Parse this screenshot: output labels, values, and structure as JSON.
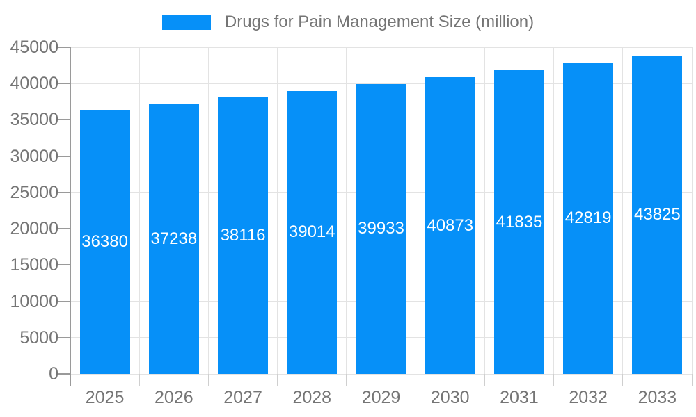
{
  "chart_data": {
    "type": "bar",
    "title": "Drugs for Pain Management Size (million)",
    "legend_entries": [
      "Drugs for Pain Management Size (million)"
    ],
    "legend_position": "top",
    "categories": [
      "2025",
      "2026",
      "2027",
      "2028",
      "2029",
      "2030",
      "2031",
      "2032",
      "2033"
    ],
    "series": [
      {
        "name": "Drugs for Pain Management Size (million)",
        "values": [
          36380,
          37238,
          38116,
          39014,
          39933,
          40873,
          41835,
          42819,
          43825
        ]
      }
    ],
    "values": [
      36380,
      37238,
      38116,
      39014,
      39933,
      40873,
      41835,
      42819,
      43825
    ],
    "value_labels_shown": true,
    "xlabel": "",
    "ylabel": "",
    "ylim": [
      0,
      45000
    ],
    "yticks": [
      0,
      5000,
      10000,
      15000,
      20000,
      25000,
      30000,
      35000,
      40000,
      45000
    ],
    "grid": true
  },
  "colors": {
    "bar": "#0690f8",
    "axis": "#9a9a9a",
    "grid": "#e3e3e3",
    "boundary_tick": "#cfcfcf",
    "axis_text": "#757575",
    "value_label_text": "#ffffff",
    "background": "#ffffff"
  }
}
